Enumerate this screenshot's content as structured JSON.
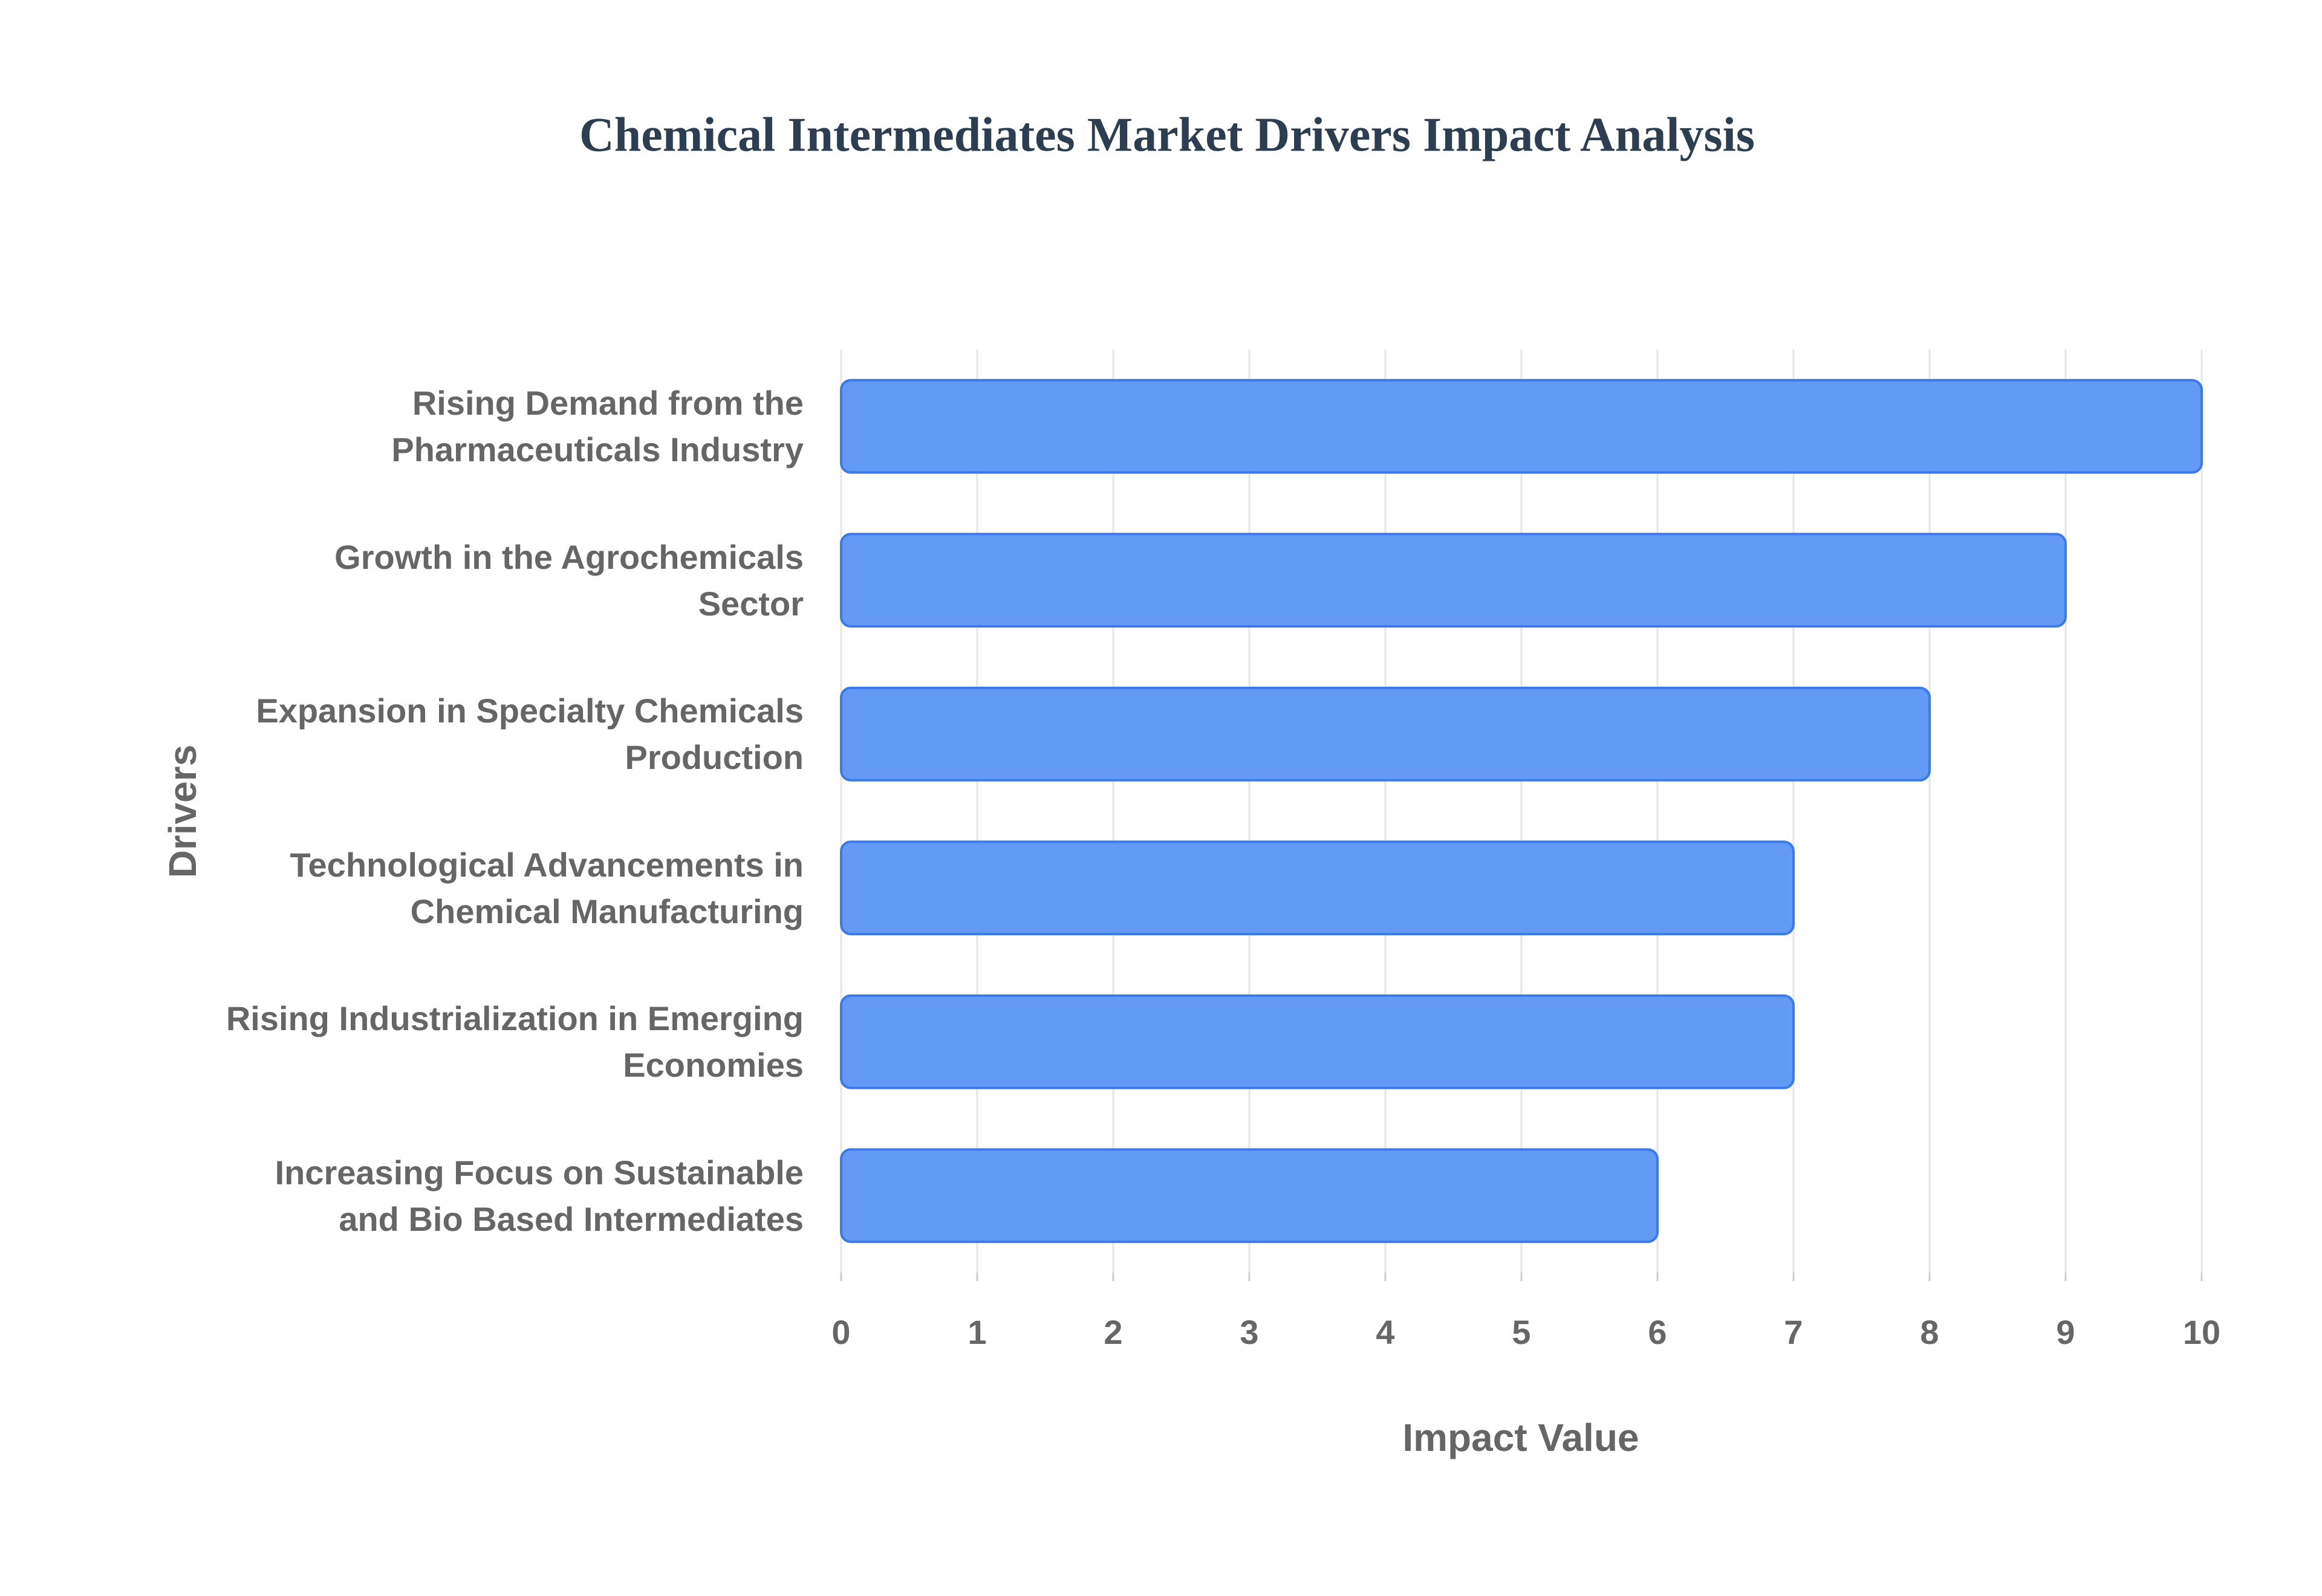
{
  "chart_data": {
    "type": "hbar",
    "title": "Chemical Intermediates Market Drivers Impact Analysis",
    "categories": [
      "Rising Demand from the Pharmaceuticals Industry",
      "Growth in the Agrochemicals Sector",
      "Expansion in Specialty Chemicals Production",
      "Technological Advancements in Chemical Manufacturing",
      "Rising Industrialization in Emerging Economies",
      "Increasing Focus on Sustainable and Bio Based Intermediates"
    ],
    "values": [
      10,
      9,
      8,
      7,
      7,
      6
    ],
    "color": "#639af6",
    "x_label": "Impact Value",
    "y_label": "Drivers",
    "xlim": [
      0,
      10
    ],
    "xticks": [
      0,
      1,
      2,
      3,
      4,
      5,
      6,
      7,
      8,
      9,
      10
    ],
    "grid": true
  }
}
